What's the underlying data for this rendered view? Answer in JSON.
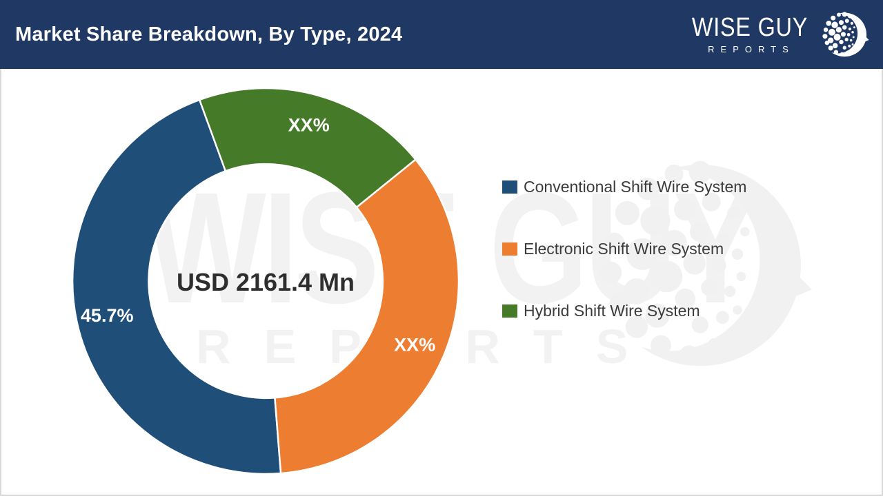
{
  "header": {
    "title": "Market Share Breakdown, By Type, 2024",
    "logo": {
      "name": "WISE GUY",
      "tagline": "REPORTS"
    }
  },
  "watermark": {
    "name": "WISE GUY",
    "tagline": "REPORTS"
  },
  "chart_data": {
    "type": "pie",
    "donut": true,
    "title": "Market Share Breakdown, By Type, 2024",
    "center_label": "USD 2161.4 Mn",
    "categories": [
      "Conventional Shift Wire System",
      "Electronic Shift Wire System",
      "Hybrid Shift Wire System"
    ],
    "values": [
      45.7,
      34.6,
      19.7
    ],
    "value_labels": [
      "45.7%",
      "XX%",
      "XX%"
    ],
    "colors": [
      "#1f4e78",
      "#ed7d31",
      "#447a28"
    ],
    "start_angle": 110,
    "counterclock": true,
    "inner_radius_ratio": 0.607,
    "label_distance": 0.84,
    "legend_position": "right"
  },
  "legend": {
    "items": [
      {
        "label": "Conventional Shift Wire System",
        "color": "#1f4e78"
      },
      {
        "label": "Electronic Shift Wire System",
        "color": "#ed7d31"
      },
      {
        "label": "Hybrid Shift Wire System",
        "color": "#447a28"
      }
    ]
  },
  "theme": {
    "header_bg": "#1f3864",
    "title_color": "#ffffff",
    "legend_text": "#3b3b3b",
    "center_label_color": "#2e2e2e",
    "frame_border": "#d8d8d8",
    "watermark_color": "#f2f2f2",
    "slice_gap_color": "#ffffff"
  }
}
